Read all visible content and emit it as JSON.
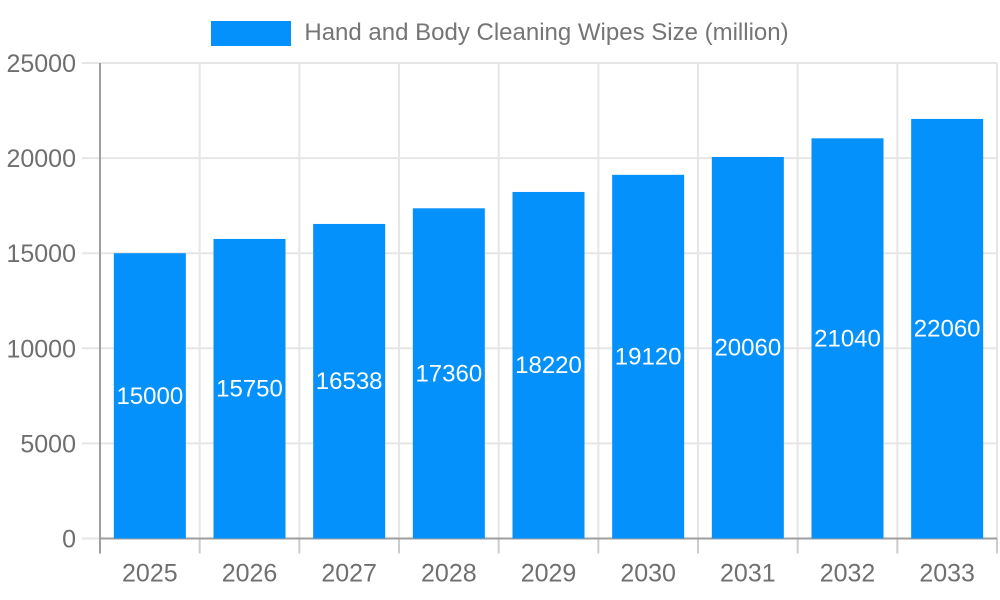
{
  "legend": {
    "label": "Hand and Body Cleaning Wipes Size (million)"
  },
  "chart_data": {
    "type": "bar",
    "title": "Hand and Body Cleaning Wipes Size (million)",
    "series_name": "Hand and Body Cleaning Wipes Size (million)",
    "categories": [
      "2025",
      "2026",
      "2027",
      "2028",
      "2029",
      "2030",
      "2031",
      "2032",
      "2033"
    ],
    "values": [
      15000,
      15750,
      16538,
      17360,
      18220,
      19120,
      20060,
      21040,
      22060
    ],
    "xlabel": "",
    "ylabel": "",
    "ylim": [
      0,
      25000
    ],
    "yticks": [
      0,
      5000,
      10000,
      15000,
      20000,
      25000
    ],
    "grid": true,
    "legend_position": "top-center",
    "value_labels": "inside-middle",
    "colors": {
      "bar": "#0591fb",
      "value_label": "#ffffff",
      "axis": "#9e9e9e",
      "gridline": "#e6e6e6",
      "x_tick": "#cccccc",
      "tick_label": "#6f6f6f",
      "legend_text": "#757575",
      "background": "#ffffff"
    }
  }
}
